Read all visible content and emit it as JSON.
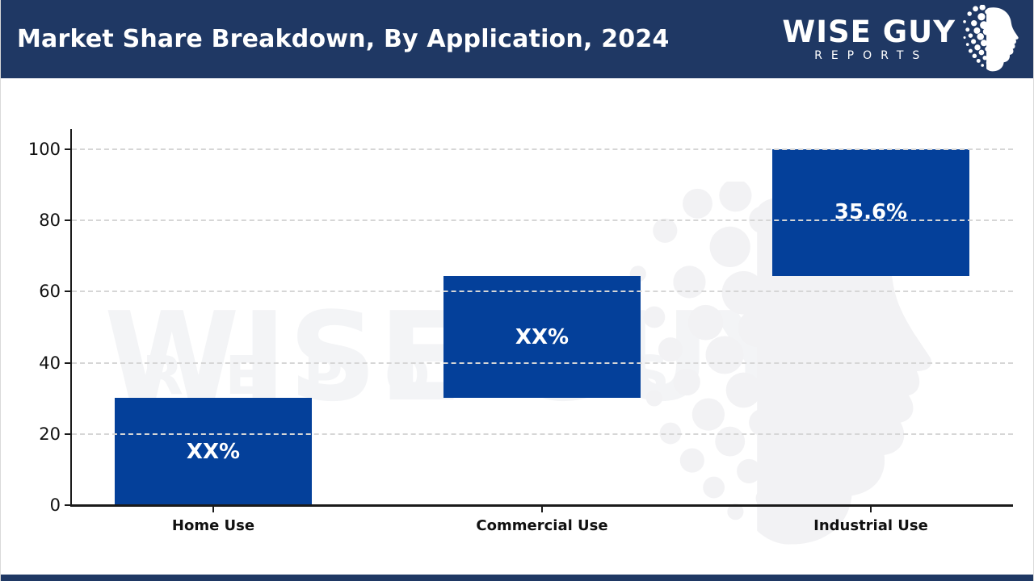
{
  "header": {
    "title": "Market Share Breakdown, By Application, 2024",
    "brand": {
      "line1": "WISE GUY",
      "line2": "REPORTS"
    }
  },
  "watermark": {
    "line1": "WISE GUY",
    "line2": "REPORTS"
  },
  "colors": {
    "header_bg": "#1f3864",
    "bar": "#04409a",
    "bar_label": "#ffffff",
    "grid": "#d6d6d6",
    "axis": "#1a1a1a",
    "tick_text": "#111111",
    "watermark": "#f3f4f6"
  },
  "chart_data": {
    "type": "bar",
    "subtype": "floating-segment-breakdown",
    "title": "Market Share Breakdown, By Application, 2024",
    "categories": [
      "Home Use",
      "Commercial Use",
      "Industrial Use"
    ],
    "segments": [
      {
        "category": "Home Use",
        "start": 0,
        "end": 30.1,
        "label": "XX%"
      },
      {
        "category": "Commercial Use",
        "start": 30.1,
        "end": 64.4,
        "label": "XX%"
      },
      {
        "category": "Industrial Use",
        "start": 64.4,
        "end": 100,
        "label": "35.6%"
      }
    ],
    "xlabel": "",
    "ylabel": "",
    "ylim": [
      0,
      105.7
    ],
    "yticks": [
      0,
      20,
      40,
      60,
      80,
      100
    ],
    "grid": "horizontal dashed, drawn above bars",
    "legend": "none",
    "bar_color": "#04409a",
    "bar_label_color": "#ffffff"
  }
}
